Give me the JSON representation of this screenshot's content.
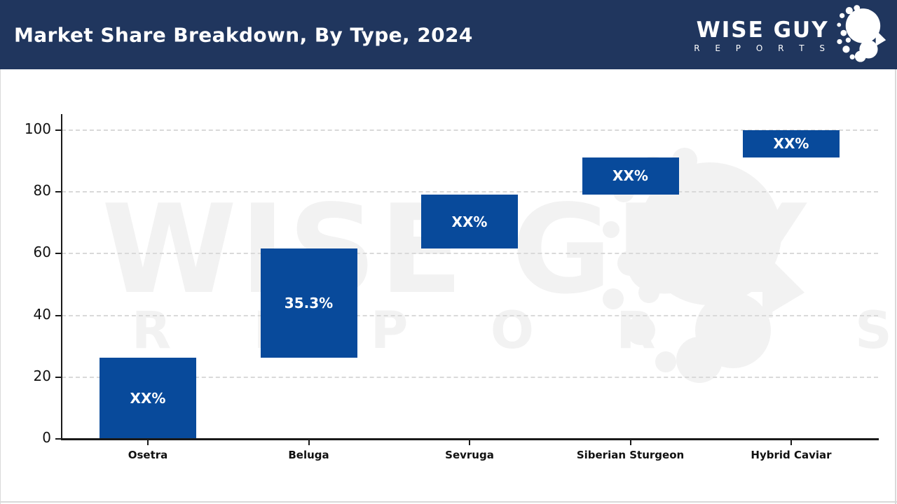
{
  "header": {
    "title": "Market Share Breakdown, By Type, 2024"
  },
  "logo": {
    "brand_line1": "WISE GUY",
    "brand_line2": "R E P O R T S"
  },
  "watermark": {
    "line1": "WISE GUY",
    "line2": "R E P O R T S"
  },
  "colors": {
    "header_bg": "#20365e",
    "title_text": "#ffffff",
    "bar": "#084a9b",
    "bar_label": "#ffffff",
    "grid": "#d9d9d9",
    "axis": "#1a1a1a",
    "tick_label": "#111111",
    "watermark": "#f2f2f2"
  },
  "chart_data": {
    "type": "bar",
    "subtype": "floating-waterfall",
    "title": "Market Share Breakdown, By Type, 2024",
    "categories": [
      "Osetra",
      "Beluga",
      "Sevruga",
      "Siberian Sturgeon",
      "Hybrid Caviar"
    ],
    "segments": [
      {
        "category": "Osetra",
        "start": 0,
        "end": 26.3,
        "label": "XX%"
      },
      {
        "category": "Beluga",
        "start": 26.3,
        "end": 61.6,
        "label": "35.3%"
      },
      {
        "category": "Sevruga",
        "start": 61.6,
        "end": 79.2,
        "label": "XX%"
      },
      {
        "category": "Siberian Sturgeon",
        "start": 79.2,
        "end": 91.2,
        "label": "XX%"
      },
      {
        "category": "Hybrid Caviar",
        "start": 91.2,
        "end": 100,
        "label": "XX%"
      }
    ],
    "yticks": [
      0,
      20,
      40,
      60,
      80,
      100
    ],
    "ylim": [
      0,
      105
    ],
    "xlabel": "",
    "ylabel": "",
    "grid": "horizontal-dashed",
    "legend": "none"
  }
}
